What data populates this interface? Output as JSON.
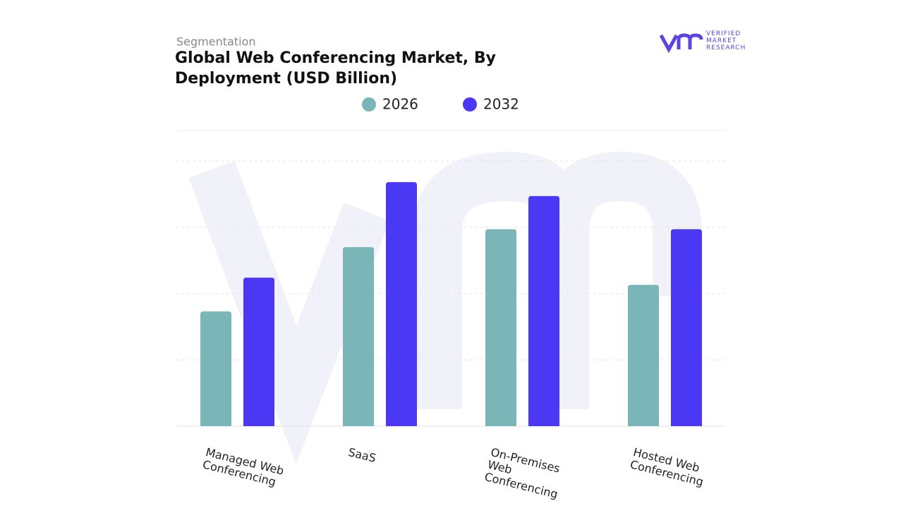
{
  "chart_data": {
    "type": "bar",
    "subtitle": "Segmentation",
    "title": "Global Web Conferencing Market, By Deployment (USD Billion)",
    "categories": [
      "Managed Web Conferencing",
      "SaaS",
      "On-Premises Web Conferencing",
      "Hosted Web Conferencing"
    ],
    "series": [
      {
        "name": "2026",
        "color": "#7ab5b8",
        "values": [
          1.73,
          2.7,
          2.97,
          2.13
        ]
      },
      {
        "name": "2032",
        "color": "#4b38f5",
        "values": [
          2.24,
          3.68,
          3.47,
          2.97
        ]
      }
    ],
    "ylim": [
      0,
      4.5
    ],
    "yticks": [
      1,
      2,
      3,
      4
    ],
    "grid": true
  },
  "logo": {
    "lines": [
      "VERIFIED",
      "MARKET",
      "RESEARCH"
    ]
  }
}
